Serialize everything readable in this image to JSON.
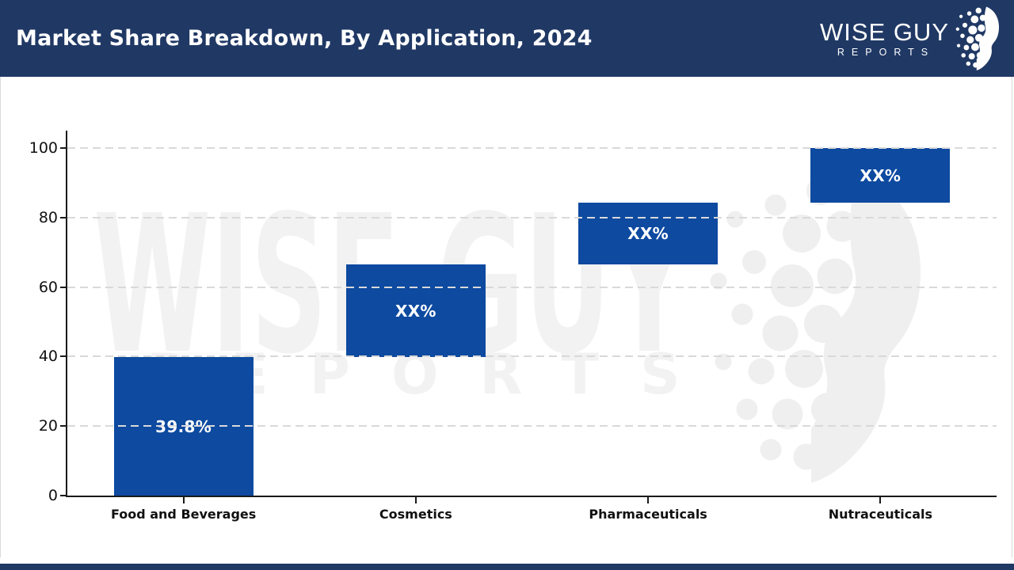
{
  "header": {
    "title": "Market Share Breakdown, By Application, 2024",
    "brand": {
      "wordmark": "WISE GUY",
      "subline": "REPORTS"
    }
  },
  "watermark": {
    "wordmark": "WISE GUY",
    "subline": "REPORTS"
  },
  "footer": {},
  "colors": {
    "header_bg": "#203864",
    "footer_bg": "#203864",
    "bar": "#0d4aa0",
    "bar_label": "#ffffff",
    "gridline": "#d9d9d9",
    "axis": "#1a1a1a",
    "watermark": "#f2f2f2"
  },
  "chart_data": {
    "type": "bar",
    "subtype": "waterfall",
    "title": "Market Share Breakdown, By Application, 2024",
    "categories": [
      "Food and Beverages",
      "Cosmetics",
      "Pharmaceuticals",
      "Nutraceuticals"
    ],
    "series": [
      {
        "name": "Market Share %",
        "ranges": [
          [
            0,
            39.8
          ],
          [
            39.8,
            66.5
          ],
          [
            66.5,
            84.2
          ],
          [
            84.2,
            100
          ]
        ],
        "values": [
          39.8,
          26.7,
          17.7,
          15.8
        ]
      }
    ],
    "bar_labels": [
      "39.8%",
      "XX%",
      "XX%",
      "XX%"
    ],
    "xlabel": "",
    "ylabel": "",
    "y_ticks": [
      0,
      20,
      40,
      60,
      80,
      100
    ],
    "ylim": [
      0,
      104.5
    ],
    "grid": "horizontal-dashed-above-bars",
    "legend": "none"
  }
}
